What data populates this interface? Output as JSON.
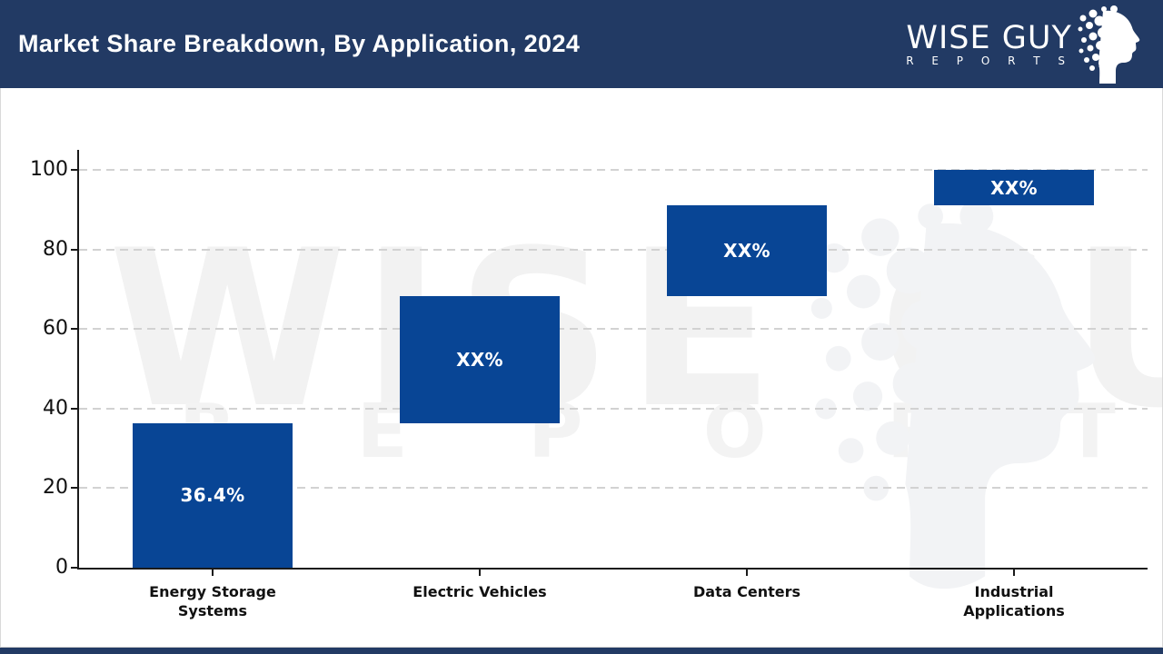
{
  "header": {
    "title": "Market Share Breakdown, By Application, 2024",
    "logo": {
      "line1": "WISE GUY",
      "line2": "R E P O R T S",
      "icon": "dotted-head-profile"
    }
  },
  "watermark": {
    "line1": "WISE GUY",
    "line2": "R E P O R T S",
    "icon": "dotted-head-profile"
  },
  "chart_data": {
    "type": "bar",
    "subtype": "waterfall-floating-bars",
    "title": "Market Share Breakdown, By Application, 2024",
    "categories": [
      "Energy Storage Systems",
      "Electric Vehicles",
      "Data Centers",
      "Industrial Applications"
    ],
    "category_display_lines": [
      [
        "Energy Storage",
        "Systems"
      ],
      [
        "Electric Vehicles"
      ],
      [
        "Data Centers"
      ],
      [
        "Industrial",
        "Applications"
      ]
    ],
    "bars": [
      {
        "category": "Energy Storage Systems",
        "label": "36.4%",
        "start": 0,
        "end": 36.4
      },
      {
        "category": "Electric Vehicles",
        "label": "XX%",
        "start": 36.4,
        "end": 68.2
      },
      {
        "category": "Data Centers",
        "label": "XX%",
        "start": 68.2,
        "end": 91.0
      },
      {
        "category": "Industrial Applications",
        "label": "XX%",
        "start": 91.0,
        "end": 100
      }
    ],
    "xlabel": "",
    "ylabel": "",
    "ylim": [
      0,
      100
    ],
    "yticks": [
      0,
      20,
      40,
      60,
      80,
      100
    ],
    "grid": "horizontal-dashed",
    "legend": "none",
    "bar_color": "#084595",
    "bar_label_color": "#ffffff",
    "axis_color": "#1a1a1a",
    "grid_color": "#d2d2d2"
  },
  "colors": {
    "header_bg": "#223a64",
    "footer_bg": "#223a64",
    "watermark": "#f2f2f2"
  }
}
